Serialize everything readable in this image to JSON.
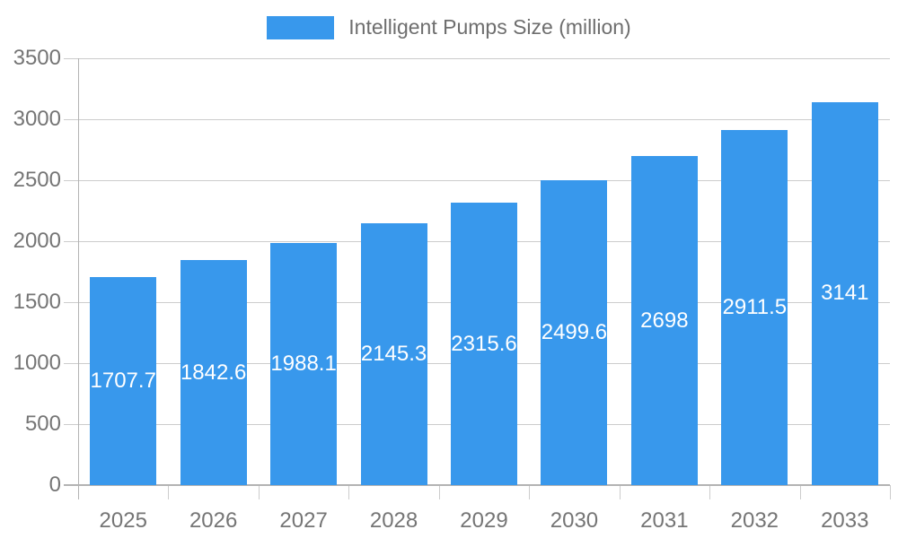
{
  "chart_data": {
    "type": "bar",
    "title": "Intelligent Pumps Size (million)",
    "categories": [
      "2025",
      "2026",
      "2027",
      "2028",
      "2029",
      "2030",
      "2031",
      "2032",
      "2033"
    ],
    "values": [
      1707.7,
      1842.6,
      1988.1,
      2145.3,
      2315.6,
      2499.6,
      2698,
      2911.5,
      3141
    ],
    "value_labels": [
      "1707.7",
      "1842.6",
      "1988.1",
      "2145.3",
      "2315.6",
      "2499.6",
      "2698",
      "2911.5",
      "3141"
    ],
    "xlabel": "",
    "ylabel": "",
    "ylim": [
      0,
      3500
    ],
    "yticks": [
      0,
      500,
      1000,
      1500,
      2000,
      2500,
      3000,
      3500
    ],
    "grid": true,
    "legend_position": "top-center",
    "colors": {
      "bar": "#3898EC",
      "bar_value_text": "#ffffff",
      "axis_text": "#757575",
      "legend_text": "#6e6e6e",
      "gridline": "#cccccc",
      "axis_line": "#b3b3b3",
      "background": "#ffffff"
    }
  }
}
